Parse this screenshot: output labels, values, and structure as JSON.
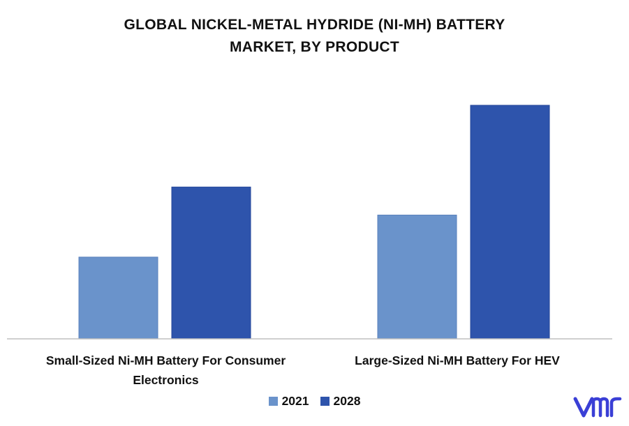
{
  "chart_data": {
    "type": "bar",
    "title_lines": [
      "GLOBAL NICKEL-METAL HYDRIDE (NI-MH) BATTERY",
      "MARKET, BY PRODUCT"
    ],
    "categories": [
      "Small-Sized Ni-MH Battery For Consumer Electronics",
      "Large-Sized Ni-MH Battery For HEV"
    ],
    "category_label_lines": [
      [
        "Small-Sized Ni-MH Battery For Consumer",
        "Electronics"
      ],
      [
        "Large-Sized Ni-MH Battery For HEV"
      ]
    ],
    "series": [
      {
        "name": "2021",
        "values": [
          35,
          53
        ],
        "color": "#6a93cb"
      },
      {
        "name": "2028",
        "values": [
          65,
          100
        ],
        "color": "#2e54ac"
      }
    ],
    "ylim": [
      0,
      100
    ],
    "grid": false,
    "y_axis_visible": false,
    "legend_position": "bottom-center"
  },
  "logo": {
    "name": "vmr-logo",
    "color": "#3a3fd6"
  }
}
